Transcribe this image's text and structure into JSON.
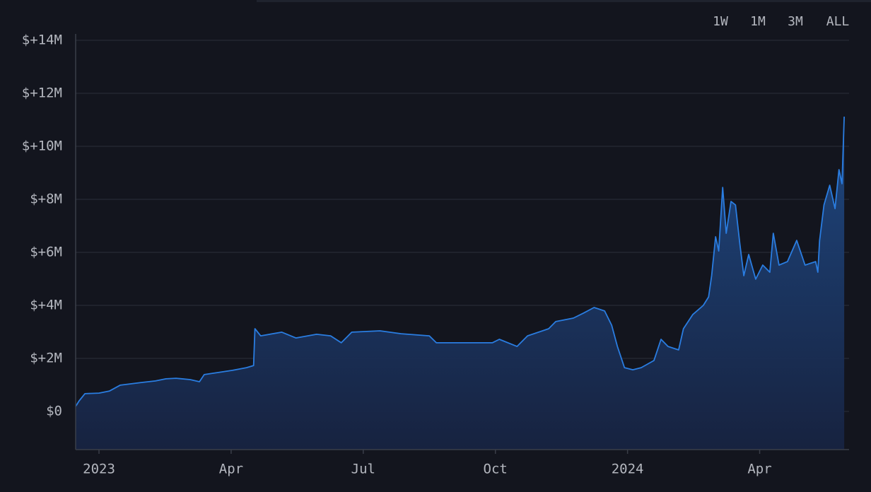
{
  "chart_data": {
    "type": "area",
    "range_buttons": [
      "1W",
      "1M",
      "3M",
      "ALL"
    ],
    "selected_range": 3,
    "color": "#2a7de1",
    "grid": true,
    "xlim": [
      -0.53,
      17.03
    ],
    "xticks": [
      {
        "value": 0,
        "label": "2023"
      },
      {
        "value": 3,
        "label": "Apr"
      },
      {
        "value": 6,
        "label": "Jul"
      },
      {
        "value": 9,
        "label": "Oct"
      },
      {
        "value": 12,
        "label": "2024"
      },
      {
        "value": 15,
        "label": "Apr"
      }
    ],
    "ylim": [
      -1.44,
      14.24
    ],
    "yticks": [
      {
        "value": 0,
        "label": "$0"
      },
      {
        "value": 2,
        "label": "$+2M"
      },
      {
        "value": 4,
        "label": "$+4M"
      },
      {
        "value": 6,
        "label": "$+6M"
      },
      {
        "value": 8,
        "label": "$+8M"
      },
      {
        "value": 10,
        "label": "$+10M"
      },
      {
        "value": 12,
        "label": "$+12M"
      },
      {
        "value": 14,
        "label": "$+14M"
      }
    ],
    "x": [
      -0.53,
      -0.45,
      -0.32,
      0,
      0.24,
      0.48,
      0.72,
      0.96,
      1.28,
      1.52,
      1.75,
      2.07,
      2.28,
      2.39,
      2.71,
      3.03,
      3.35,
      3.51,
      3.54,
      3.67,
      4.15,
      4.47,
      4.94,
      5.26,
      5.5,
      5.74,
      6.38,
      6.86,
      7.5,
      7.66,
      8.29,
      8.93,
      9.09,
      9.49,
      9.73,
      10.21,
      10.37,
      10.77,
      11.0,
      11.24,
      11.48,
      11.64,
      11.77,
      11.93,
      12.12,
      12.31,
      12.6,
      12.76,
      12.92,
      13.16,
      13.27,
      13.48,
      13.72,
      13.84,
      13.91,
      14.0,
      14.07,
      14.16,
      14.24,
      14.35,
      14.45,
      14.55,
      14.64,
      14.75,
      14.91,
      15.07,
      15.23,
      15.31,
      15.44,
      15.63,
      15.84,
      16.03,
      16.27,
      16.32,
      16.36,
      16.46,
      16.59,
      16.71,
      16.8,
      16.87,
      16.92
    ],
    "values": [
      0.19,
      0.4,
      0.67,
      0.69,
      0.77,
      0.99,
      1.04,
      1.09,
      1.15,
      1.23,
      1.25,
      1.2,
      1.12,
      1.39,
      1.47,
      1.55,
      1.65,
      1.73,
      3.12,
      2.85,
      2.99,
      2.77,
      2.91,
      2.85,
      2.59,
      2.99,
      3.04,
      2.93,
      2.85,
      2.59,
      2.59,
      2.59,
      2.72,
      2.45,
      2.85,
      3.12,
      3.39,
      3.52,
      3.71,
      3.92,
      3.79,
      3.25,
      2.45,
      1.65,
      1.57,
      1.65,
      1.92,
      2.72,
      2.45,
      2.32,
      3.12,
      3.65,
      4.0,
      4.32,
      5.12,
      6.59,
      6.05,
      8.45,
      6.72,
      7.92,
      7.79,
      6.32,
      5.12,
      5.92,
      4.99,
      5.52,
      5.25,
      6.72,
      5.52,
      5.65,
      6.45,
      5.52,
      5.65,
      5.25,
      6.45,
      7.79,
      8.53,
      7.65,
      9.12,
      8.59,
      11.12
    ]
  }
}
